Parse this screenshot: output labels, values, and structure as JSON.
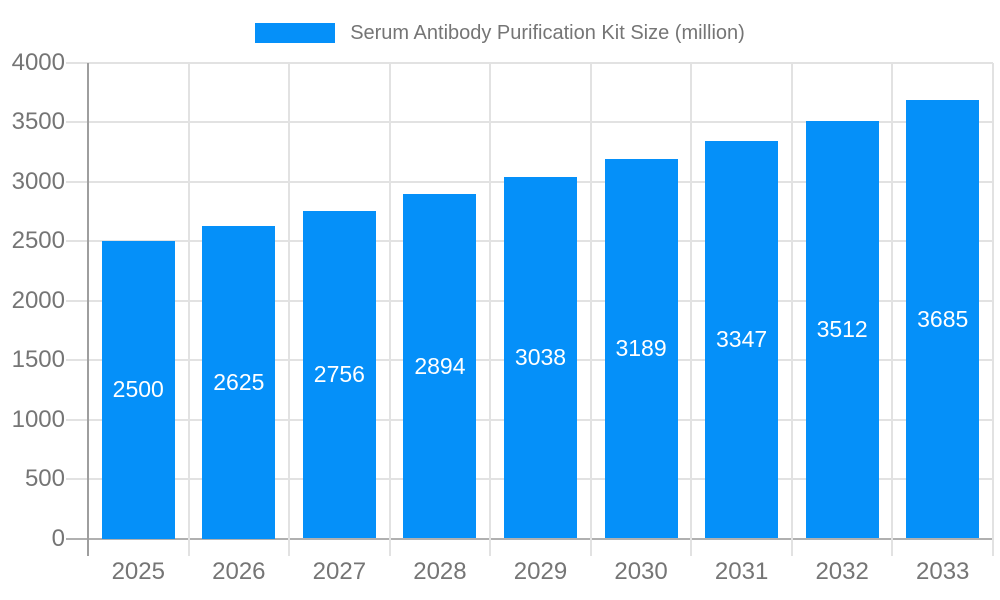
{
  "chart_data": {
    "type": "bar",
    "title": "Serum Antibody Purification Kit Size (million)",
    "categories": [
      "2025",
      "2026",
      "2027",
      "2028",
      "2029",
      "2030",
      "2031",
      "2032",
      "2033"
    ],
    "values": [
      2500,
      2625,
      2756,
      2894,
      3038,
      3189,
      3347,
      3512,
      3685
    ],
    "xlabel": "",
    "ylabel": "",
    "ylim": [
      0,
      4000
    ],
    "yticks": [
      0,
      500,
      1000,
      1500,
      2000,
      2500,
      3000,
      3500,
      4000
    ],
    "grid": true,
    "legend_position": "top-center",
    "bar_color": "#0590f9",
    "value_label_color": "#ffffff",
    "tick_label_color": "#757575",
    "legend_text_color": "#757575",
    "gridline_color": "#e2e2e2",
    "axis_line_color": "#9e9e9e",
    "baseline_color": "#b0b0b0"
  }
}
